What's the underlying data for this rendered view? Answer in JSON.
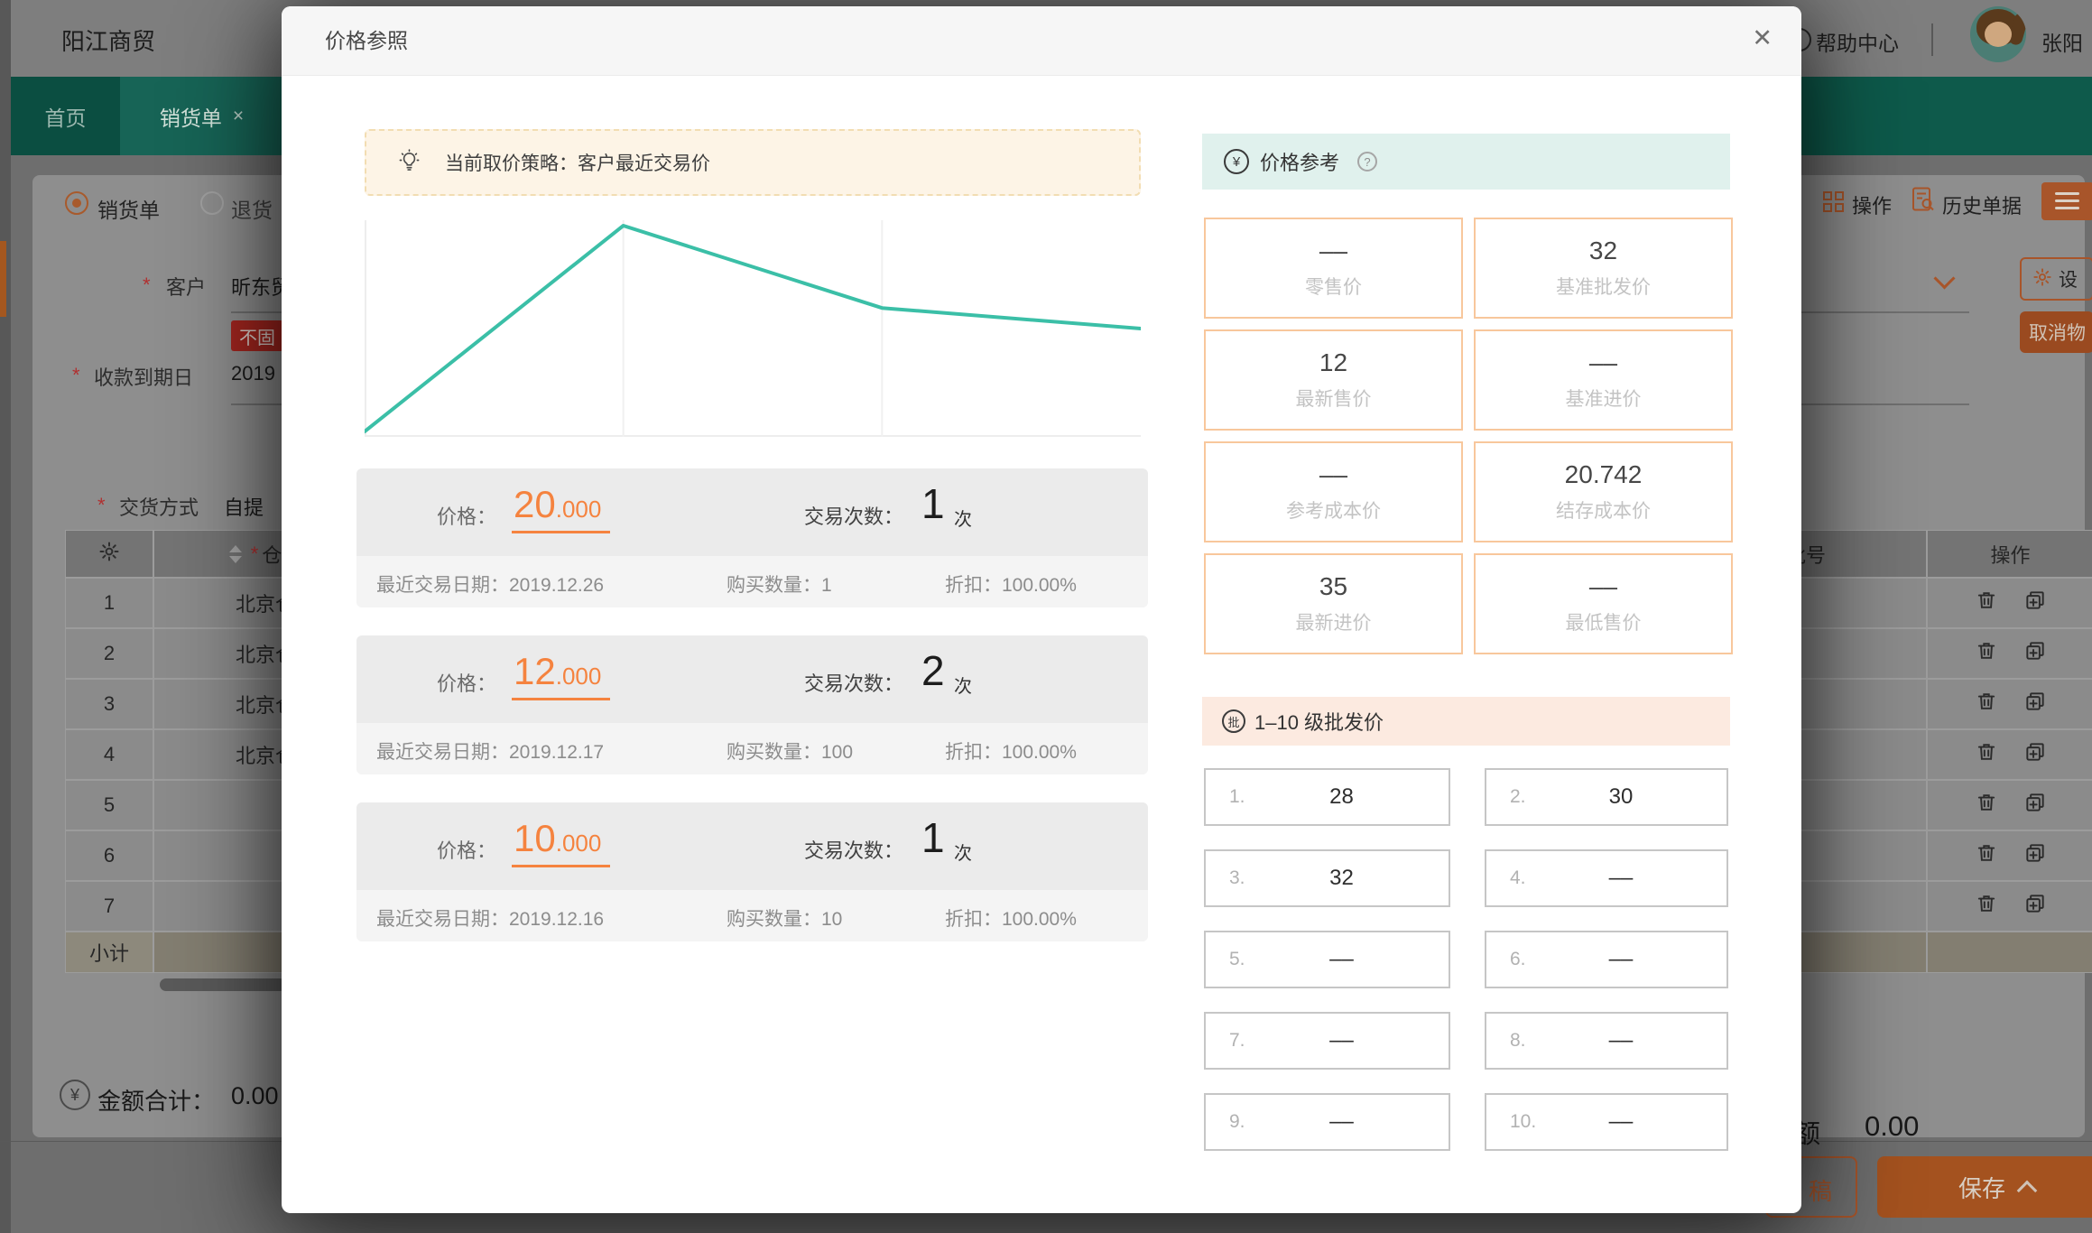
{
  "icons": {
    "close": "✕",
    "tab_close": "×",
    "currency": "¥",
    "question": "?",
    "batch": "批"
  },
  "app": {
    "company": "阳江商贸",
    "help_center": "帮助中心",
    "user_name": "张阳",
    "required_mark": "*",
    "tabs": [
      {
        "label": "首页"
      },
      {
        "label": "销货单"
      }
    ],
    "doc_type": {
      "selected": "销货单",
      "other": "退货"
    },
    "fields": {
      "customer_label": "客户",
      "customer_value": "昕东贸",
      "customer_tag": "不固",
      "due_date_label": "收款到期日",
      "due_date_value": "2019",
      "delivery_label": "交货方式",
      "delivery_value": "自提"
    },
    "toolbar": {
      "operations": "操作",
      "history": "历史单据"
    },
    "side_buttons": {
      "settings": "设",
      "cancel_logistics": "取消物"
    },
    "table": {
      "warehouse_col": "仓库",
      "batch_col": "批号",
      "ops_col": "操作",
      "subtotal": "小计",
      "rows": [
        {
          "no": "1",
          "warehouse": "北京仓"
        },
        {
          "no": "2",
          "warehouse": "北京仓"
        },
        {
          "no": "3",
          "warehouse": "北京仓"
        },
        {
          "no": "4",
          "warehouse": "北京仓"
        },
        {
          "no": "5",
          "warehouse": ""
        },
        {
          "no": "6",
          "warehouse": ""
        },
        {
          "no": "7",
          "warehouse": ""
        }
      ]
    },
    "totals": {
      "amount_total_label": "金额合计：",
      "amount_total_value": "0.00"
    },
    "footer_right": {
      "amount_label": "金额",
      "amount_value": "0.00",
      "draft": "稿",
      "save": "保存"
    }
  },
  "modal": {
    "title": "价格参照",
    "strategy_banner": "当前取价策略：客户最近交易价",
    "cards": [
      {
        "price_label": "价格：",
        "price_main": "20",
        "price_dec": ".000",
        "count_label": "交易次数：",
        "count": "1",
        "count_unit": "次",
        "date_label": "最近交易日期：",
        "date": "2019.12.26",
        "qty_label": "购买数量：",
        "qty": "1",
        "discount_label": "折扣：",
        "discount": "100.00%"
      },
      {
        "price_label": "价格：",
        "price_main": "12",
        "price_dec": ".000",
        "count_label": "交易次数：",
        "count": "2",
        "count_unit": "次",
        "date_label": "最近交易日期：",
        "date": "2019.12.17",
        "qty_label": "购买数量：",
        "qty": "100",
        "discount_label": "折扣：",
        "discount": "100.00%"
      },
      {
        "price_label": "价格：",
        "price_main": "10",
        "price_dec": ".000",
        "count_label": "交易次数：",
        "count": "1",
        "count_unit": "次",
        "date_label": "最近交易日期：",
        "date": "2019.12.16",
        "qty_label": "购买数量：",
        "qty": "10",
        "discount_label": "折扣：",
        "discount": "100.00%"
      }
    ],
    "price_reference": {
      "title": "价格参考",
      "boxes": [
        {
          "value": "––",
          "label": "零售价"
        },
        {
          "value": "32",
          "label": "基准批发价"
        },
        {
          "value": "12",
          "label": "最新售价"
        },
        {
          "value": "––",
          "label": "基准进价"
        },
        {
          "value": "––",
          "label": "参考成本价"
        },
        {
          "value": "20.742",
          "label": "结存成本价"
        },
        {
          "value": "35",
          "label": "最新进价"
        },
        {
          "value": "––",
          "label": "最低售价"
        }
      ]
    },
    "wholesale": {
      "title": "1–10 级批发价",
      "items": [
        {
          "no": "1.",
          "value": "28"
        },
        {
          "no": "2.",
          "value": "30"
        },
        {
          "no": "3.",
          "value": "32"
        },
        {
          "no": "4.",
          "value": "––"
        },
        {
          "no": "5.",
          "value": "––"
        },
        {
          "no": "6.",
          "value": "––"
        },
        {
          "no": "7.",
          "value": "––"
        },
        {
          "no": "8.",
          "value": "––"
        },
        {
          "no": "9.",
          "value": "––"
        },
        {
          "no": "10.",
          "value": "––"
        }
      ]
    }
  },
  "chart_data": {
    "type": "line",
    "title": "",
    "xlabel": "",
    "ylabel": "",
    "x": [
      0,
      1,
      2,
      3
    ],
    "values": [
      0,
      20,
      12,
      10
    ],
    "ylim": [
      0,
      20
    ],
    "gridline_xs": [
      1,
      2
    ],
    "grid": "vertical-only",
    "legend": "none",
    "line_color": "#3bbfa7"
  },
  "colors": {
    "accent_orange": "#f5833f",
    "teal_line": "#3bbfa7",
    "nav_green": "#0e5a4b",
    "tag_red": "#a3261f",
    "ref_box_border": "#f8c79c",
    "banner_bg": "#fdf4e6",
    "ref_header_bg": "#e0f1ed",
    "wholesale_header_bg": "#fceae0"
  }
}
